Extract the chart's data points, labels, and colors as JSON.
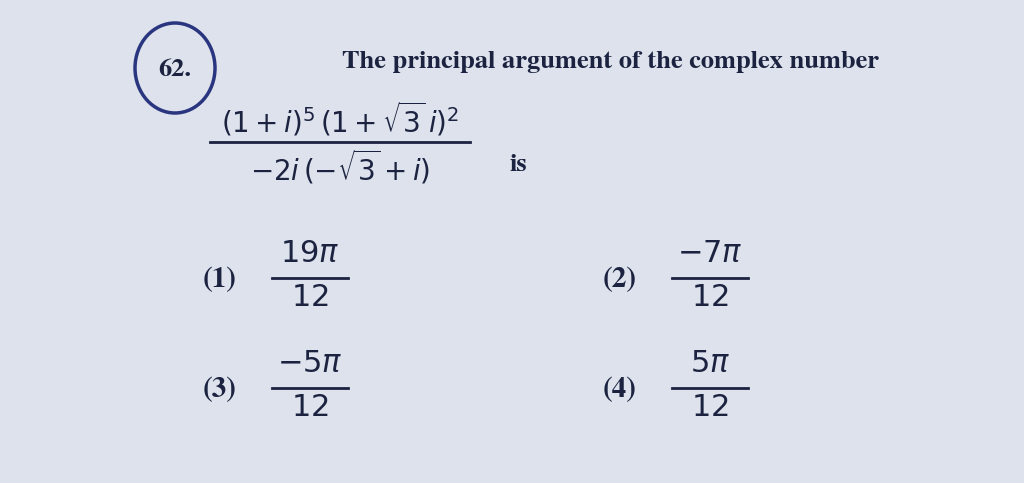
{
  "background_color": "#dde2ec",
  "text_color": "#1c2340",
  "circle_color": "#2a3580",
  "q_num": "62.",
  "q_text": "The principal argument of the complex number",
  "frac_numer": "$(1+i)^5\\,(1+\\sqrt{3}\\,i)^2$",
  "frac_denom": "$-2i\\,(-\\sqrt{3}+i)$",
  "is_text": "is",
  "options": [
    {
      "label": "(1)",
      "numer": "$19\\pi$",
      "denom": "$12$"
    },
    {
      "label": "(2)",
      "numer": "$-7\\pi$",
      "denom": "$12$"
    },
    {
      "label": "(3)",
      "numer": "$-5\\pi$",
      "denom": "$12$"
    },
    {
      "label": "(4)",
      "numer": "$5\\pi$",
      "denom": "$12$"
    }
  ],
  "figsize": [
    10.24,
    4.83
  ],
  "dpi": 100
}
